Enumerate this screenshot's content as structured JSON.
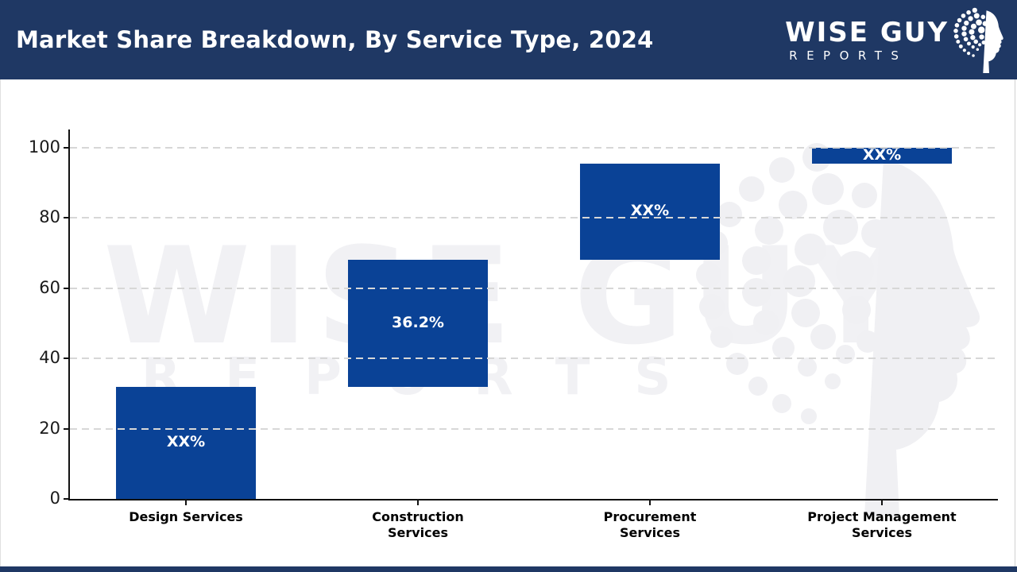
{
  "header": {
    "title": "Market Share Breakdown, By Service Type, 2024",
    "logo": {
      "line1": "WISE GUY",
      "line2": "REPORTS"
    }
  },
  "watermark": {
    "line1": "WISE GUY",
    "line2": "REPORTS"
  },
  "chart_data": {
    "type": "bar",
    "subtype": "waterfall",
    "title": "Market Share Breakdown, By Service Type, 2024",
    "categories": [
      "Design Services",
      "Construction\nServices",
      "Procurement\nServices",
      "Project Management\nServices"
    ],
    "segments": [
      {
        "category": "Design Services",
        "start": 0,
        "end": 32,
        "label": "XX%"
      },
      {
        "category": "Construction Services",
        "start": 32,
        "end": 68.2,
        "label": "36.2%"
      },
      {
        "category": "Procurement Services",
        "start": 68.2,
        "end": 95.5,
        "label": "XX%"
      },
      {
        "category": "Project Management Services",
        "start": 95.5,
        "end": 100,
        "label": "XX%"
      }
    ],
    "ylabel": "",
    "xlabel": "",
    "ylim": [
      0,
      105
    ],
    "yticks": [
      0,
      20,
      40,
      60,
      80,
      100
    ],
    "grid": "horizontal dashed, drawn above bars",
    "legend": "none",
    "bar_color": "#0a4296",
    "bar_label_color": "#ffffff"
  },
  "colors": {
    "header_bg": "#1f3864",
    "footer_bg": "#1f3864",
    "bar": "#0a4296",
    "grid": "#d7d7d7",
    "axis": "#111111",
    "watermark": "#f1f1f4",
    "title_text": "#ffffff"
  }
}
